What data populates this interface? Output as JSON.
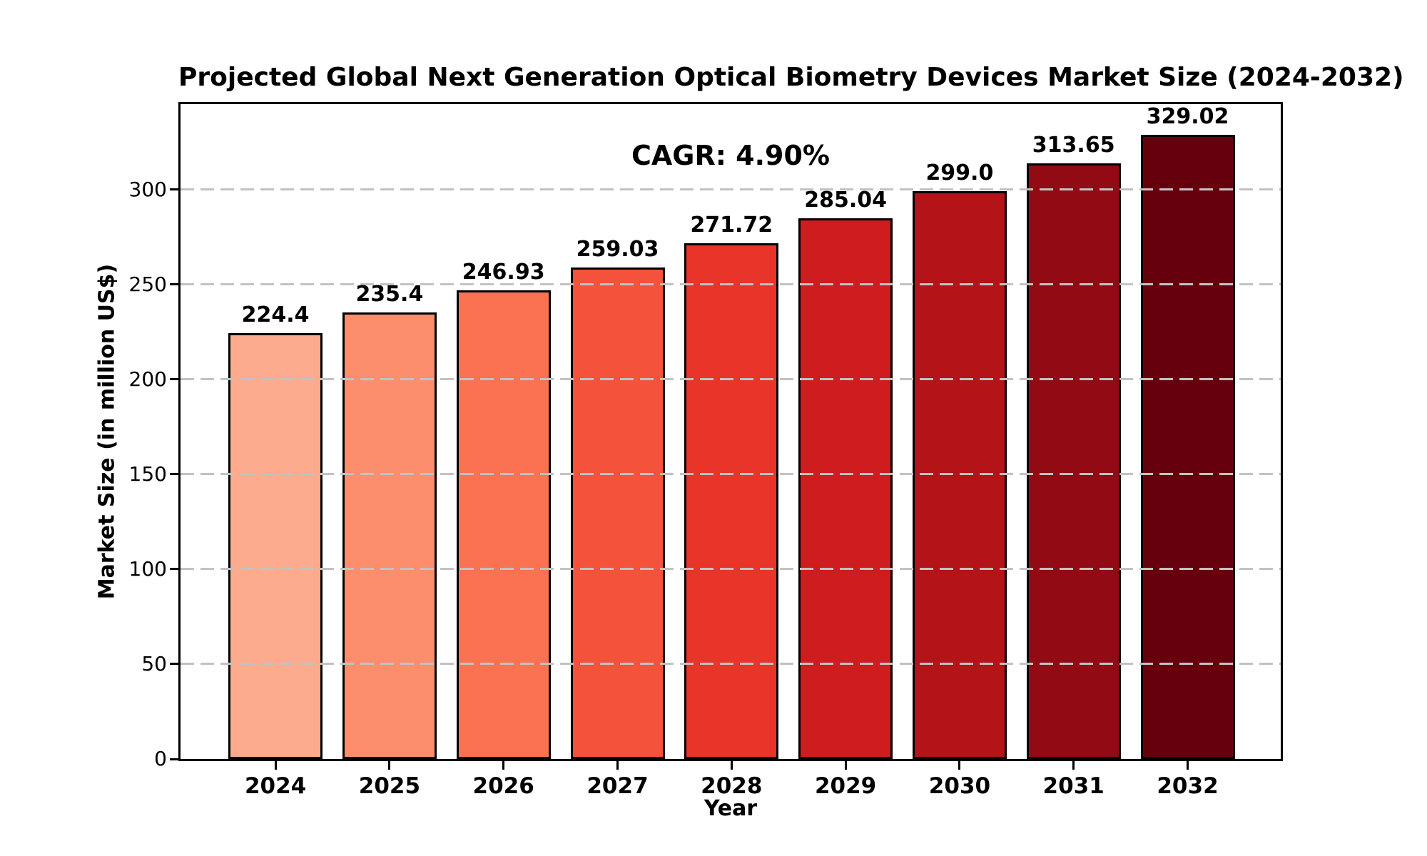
{
  "chart_data": {
    "type": "bar",
    "title": "Projected Global Next Generation Optical Biometry Devices Market Size (2024-2032)",
    "annotation": "CAGR: 4.90%",
    "xlabel": "Year",
    "ylabel": "Market Size (in million US$)",
    "categories": [
      "2024",
      "2025",
      "2026",
      "2027",
      "2028",
      "2029",
      "2030",
      "2031",
      "2032"
    ],
    "values": [
      224.4,
      235.4,
      246.93,
      259.03,
      271.72,
      285.04,
      299.0,
      313.65,
      329.02
    ],
    "value_labels": [
      "224.4",
      "235.4",
      "246.93",
      "259.03",
      "271.72",
      "285.04",
      "299.0",
      "313.65",
      "329.02"
    ],
    "ylim": [
      0,
      345
    ],
    "yticks": [
      0,
      50,
      100,
      150,
      200,
      250,
      300
    ],
    "grid": "horizontal dashed, drawn above bars",
    "legend": "none",
    "bar_colors": [
      "#fcab8e",
      "#fc8e6e",
      "#fb7252",
      "#f5523b",
      "#e83429",
      "#cf1c1f",
      "#b41318",
      "#920a13",
      "#67000d"
    ],
    "bar_edge_color": "#000000",
    "grid_color": "#c2c2c2",
    "axis_color": "#000000",
    "background_color": "#ffffff"
  }
}
